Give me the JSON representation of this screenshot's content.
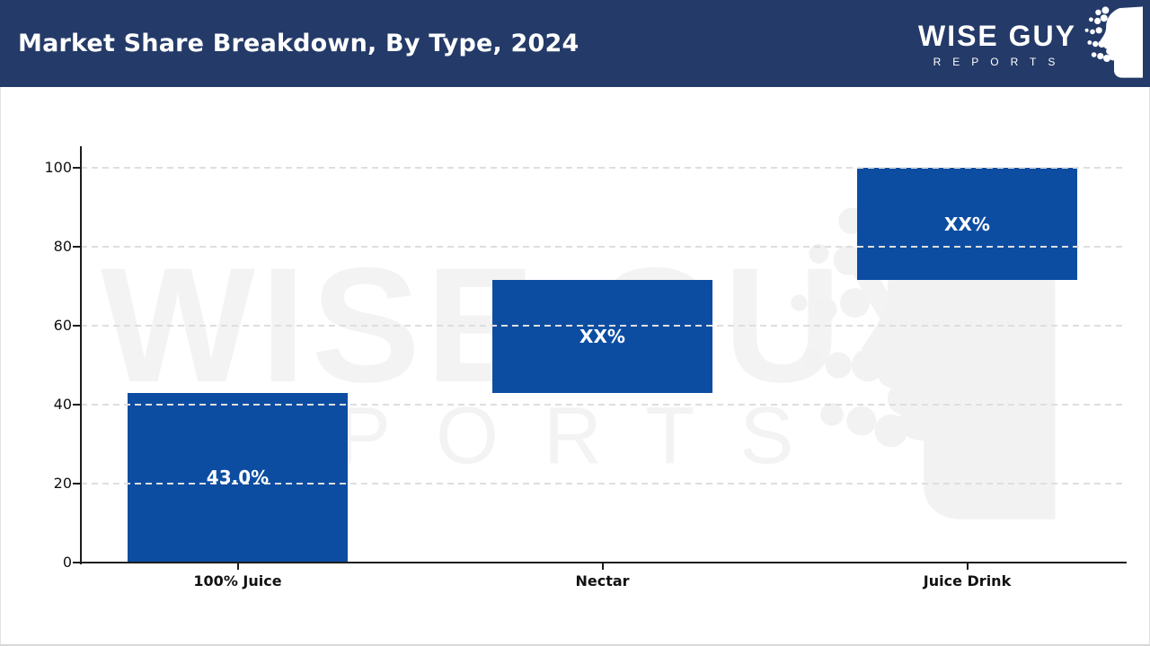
{
  "header": {
    "title": "Market Share Breakdown, By Type, 2024",
    "logo": {
      "wordmark": "WISE GUY",
      "subtext": "REPORTS"
    }
  },
  "watermark": {
    "wordmark": "WISE GUY",
    "subtext": "REPORTS"
  },
  "chart_data": {
    "type": "bar",
    "subtype": "waterfall",
    "title": "Market Share Breakdown, By Type, 2024",
    "categories": [
      "100% Juice",
      "Nectar",
      "Juice Drink"
    ],
    "segments": [
      {
        "category": "100% Juice",
        "start": 0,
        "end": 43.0,
        "value_label": "43.0%"
      },
      {
        "category": "Nectar",
        "start": 43.0,
        "end": 71.5,
        "value_label": "XX%"
      },
      {
        "category": "Juice Drink",
        "start": 71.5,
        "end": 100.0,
        "value_label": "XX%"
      }
    ],
    "yticks": [
      0,
      20,
      40,
      60,
      80,
      100
    ],
    "ylim": [
      0,
      105
    ],
    "xlabel": "",
    "ylabel": "",
    "grid": "horizontal-dashed-drawn-over-bars",
    "legend": "none",
    "bar_color": "#0c4da2",
    "bar_label_color": "#ffffff"
  },
  "colors": {
    "header_bg": "#243a68",
    "axis": "#1c1c1c",
    "grid": "#dedede",
    "tick_text": "#111111",
    "watermark": "#f3f3f3",
    "page_bg": "#ffffff",
    "border": "#d8d8d8"
  }
}
